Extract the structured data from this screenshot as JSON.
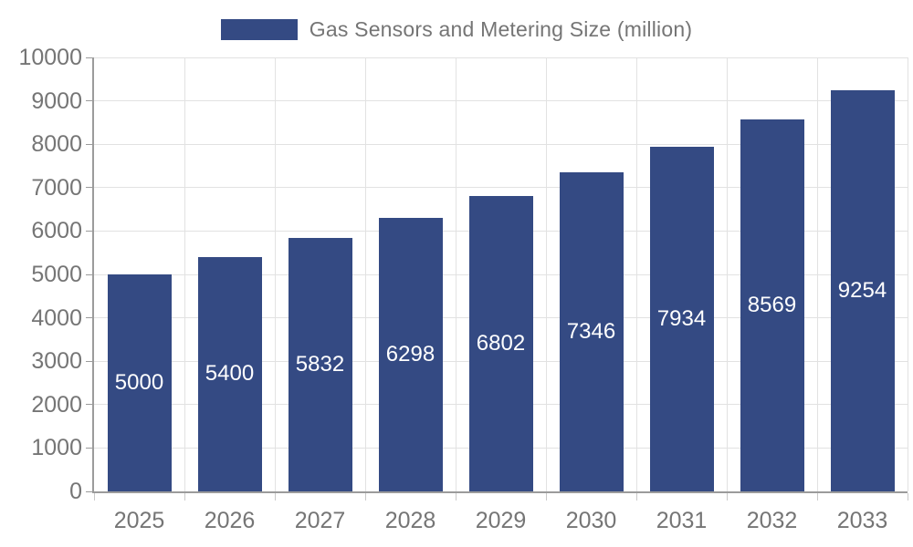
{
  "chart_data": {
    "type": "bar",
    "title": "Gas Sensors and Metering Size (million)",
    "series_name": "Gas Sensors and Metering Size (million)",
    "categories": [
      "2025",
      "2026",
      "2027",
      "2028",
      "2029",
      "2030",
      "2031",
      "2032",
      "2033"
    ],
    "values": [
      5000,
      5400,
      5832,
      6298,
      6802,
      7346,
      7934,
      8569,
      9254
    ],
    "xlabel": "",
    "ylabel": "",
    "ylim": [
      0,
      10000
    ],
    "ytick_step": 1000,
    "yticks": [
      0,
      1000,
      2000,
      3000,
      4000,
      5000,
      6000,
      7000,
      8000,
      9000,
      10000
    ],
    "grid": true,
    "legend_position": "top",
    "value_labels": "inside-center",
    "colors": {
      "bar": "#344a83",
      "value_label": "#ffffff",
      "axis_line": "#9b9b9b",
      "gridline": "#e2e2e2",
      "tick_text": "#757575",
      "legend_text": "#757575",
      "background": "#ffffff"
    }
  }
}
